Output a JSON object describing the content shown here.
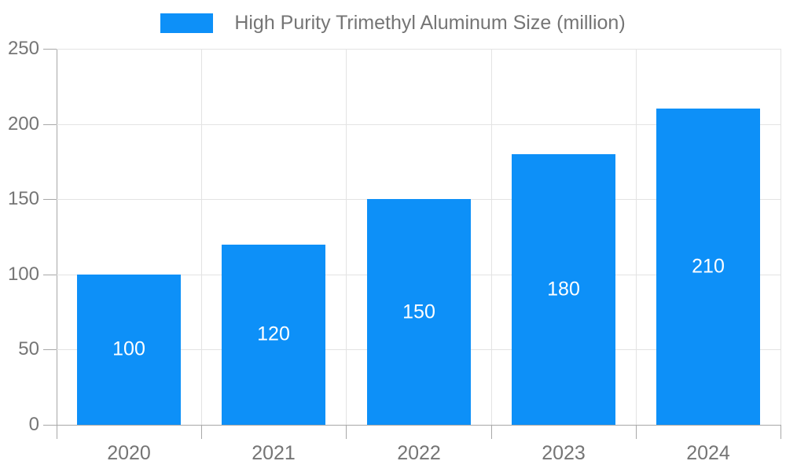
{
  "chart_data": {
    "type": "bar",
    "title": "High Purity Trimethyl Aluminum Size (million)",
    "categories": [
      "2020",
      "2021",
      "2022",
      "2023",
      "2024"
    ],
    "series": [
      {
        "name": "High Purity Trimethyl Aluminum Size (million)",
        "values": [
          100,
          120,
          150,
          180,
          210
        ]
      }
    ],
    "value_labels": [
      "100",
      "120",
      "150",
      "180",
      "210"
    ],
    "xlabel": "",
    "ylabel": "",
    "ylim": [
      0,
      250
    ],
    "y_ticks": [
      0,
      50,
      100,
      150,
      200,
      250
    ],
    "grid": true,
    "legend_position": "top",
    "colors": {
      "bar": "#0d90f8",
      "value_label": "#ffffff",
      "grid": "#e3e3e3",
      "axis": "#a8a8a8",
      "text": "#757575"
    }
  }
}
